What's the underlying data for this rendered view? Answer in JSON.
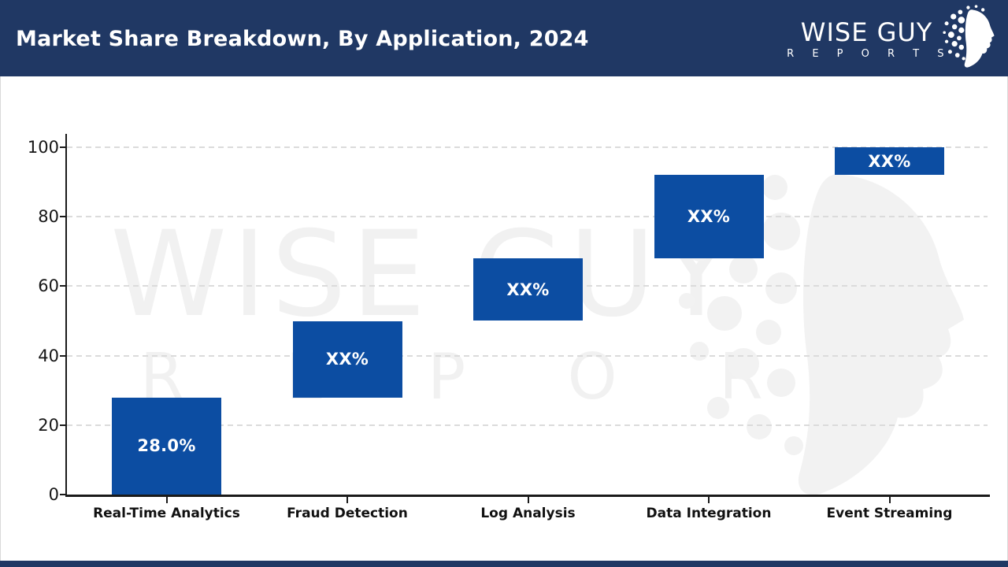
{
  "header": {
    "title": "Market Share Breakdown, By Application, 2024",
    "logo": {
      "line1": "WISE GUY",
      "line2": "R E P O R T S"
    }
  },
  "watermark": {
    "line1": "WISE GUY",
    "line2": "R E P O R T S"
  },
  "colors": {
    "header_bg": "#203864",
    "footer_bg": "#203864",
    "bar": "#0c4da2",
    "bar_label": "#ffffff",
    "grid": "#dbdbdb",
    "axis": "#1a1a1a",
    "watermark": "#f1f1f1"
  },
  "chart_data": {
    "type": "bar",
    "subtype": "floating-waterfall",
    "title": "Market Share Breakdown, By Application, 2024",
    "categories": [
      "Real-Time Analytics",
      "Fraud Detection",
      "Log Analysis",
      "Data Integration",
      "Event Streaming"
    ],
    "bars": [
      {
        "category": "Real-Time Analytics",
        "start": 0,
        "end": 28,
        "height": 28,
        "label": "28.0%"
      },
      {
        "category": "Fraud Detection",
        "start": 28,
        "end": 50,
        "height": 22,
        "label": "XX%"
      },
      {
        "category": "Log Analysis",
        "start": 50,
        "end": 68,
        "height": 18,
        "label": "XX%"
      },
      {
        "category": "Data Integration",
        "start": 68,
        "end": 92,
        "height": 24,
        "label": "XX%"
      },
      {
        "category": "Event Streaming",
        "start": 92,
        "end": 100,
        "height": 8,
        "label": "XX%"
      }
    ],
    "yticks": [
      0,
      20,
      40,
      60,
      80,
      100
    ],
    "ylim": [
      0,
      105
    ],
    "xlabel": "",
    "ylabel": "",
    "grid": "horizontal-dashed",
    "legend": "none"
  }
}
